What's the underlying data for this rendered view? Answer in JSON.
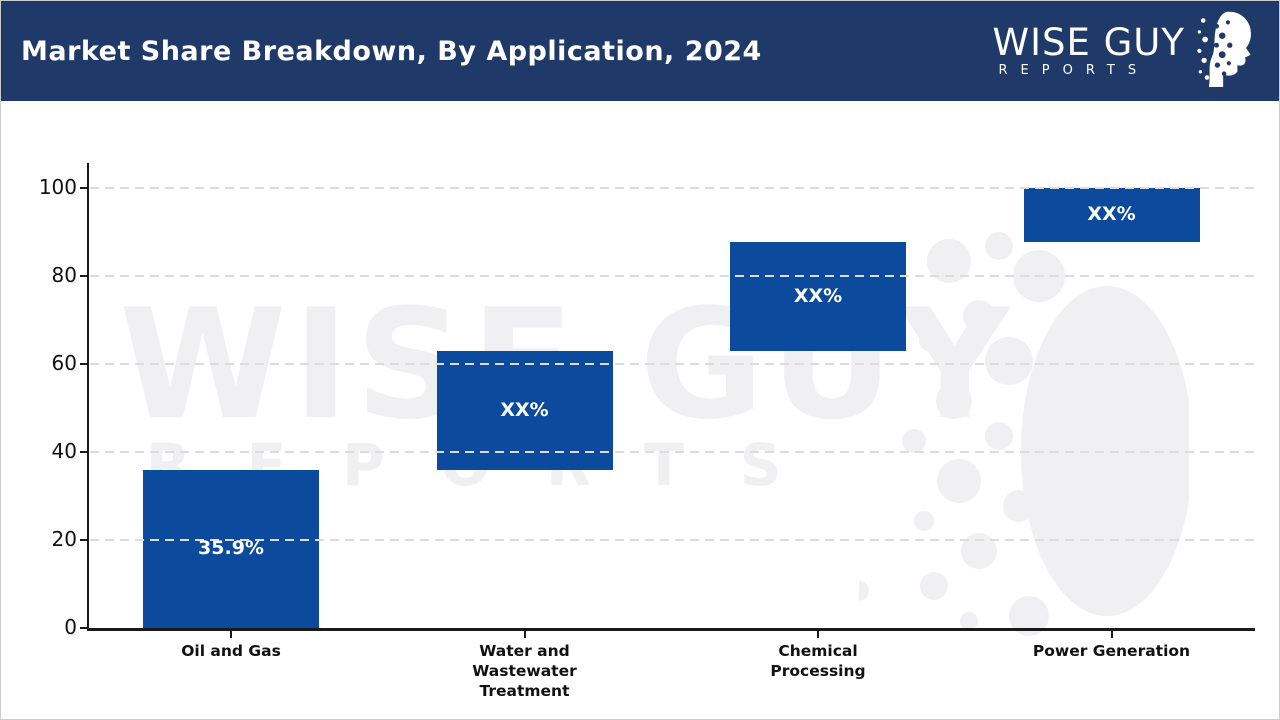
{
  "header": {
    "title": "Market Share Breakdown, By Application, 2024",
    "logo": {
      "wordmark": "WISE GUY",
      "subtext": "REPORTS"
    }
  },
  "watermark": {
    "text_main": "WISE GUY",
    "text_sub": "REPORTS"
  },
  "colors": {
    "header_bg": "#1f3a68",
    "bar": "#0c4a9e",
    "bar_label": "#ffffff",
    "grid": "#dcdcdc",
    "axis": "#1a1a1a",
    "watermark": "#f0f0f2"
  },
  "chart_data": {
    "type": "bar",
    "subtype": "waterfall",
    "title": "Market Share Breakdown, By Application, 2024",
    "xlabel": "",
    "ylabel": "",
    "ylim": [
      0,
      100
    ],
    "yticks": [
      0,
      20,
      40,
      60,
      80,
      100
    ],
    "grid": "horizontal-dashed",
    "legend": "none",
    "categories": [
      "Oil and Gas",
      "Water and Wastewater Treatment",
      "Chemical Processing",
      "Power Generation"
    ],
    "category_label_lines": [
      [
        "Oil and Gas"
      ],
      [
        "Water and",
        "Wastewater",
        "Treatment"
      ],
      [
        "Chemical",
        "Processing"
      ],
      [
        "Power Generation"
      ]
    ],
    "segments": [
      {
        "category": "Oil and Gas",
        "start": 0,
        "end": 35.9,
        "label": "35.9%"
      },
      {
        "category": "Water and Wastewater Treatment",
        "start": 35.9,
        "end": 62.9,
        "label": "XX%"
      },
      {
        "category": "Chemical Processing",
        "start": 62.9,
        "end": 87.7,
        "label": "XX%"
      },
      {
        "category": "Power Generation",
        "start": 87.7,
        "end": 100,
        "label": "XX%"
      }
    ]
  }
}
